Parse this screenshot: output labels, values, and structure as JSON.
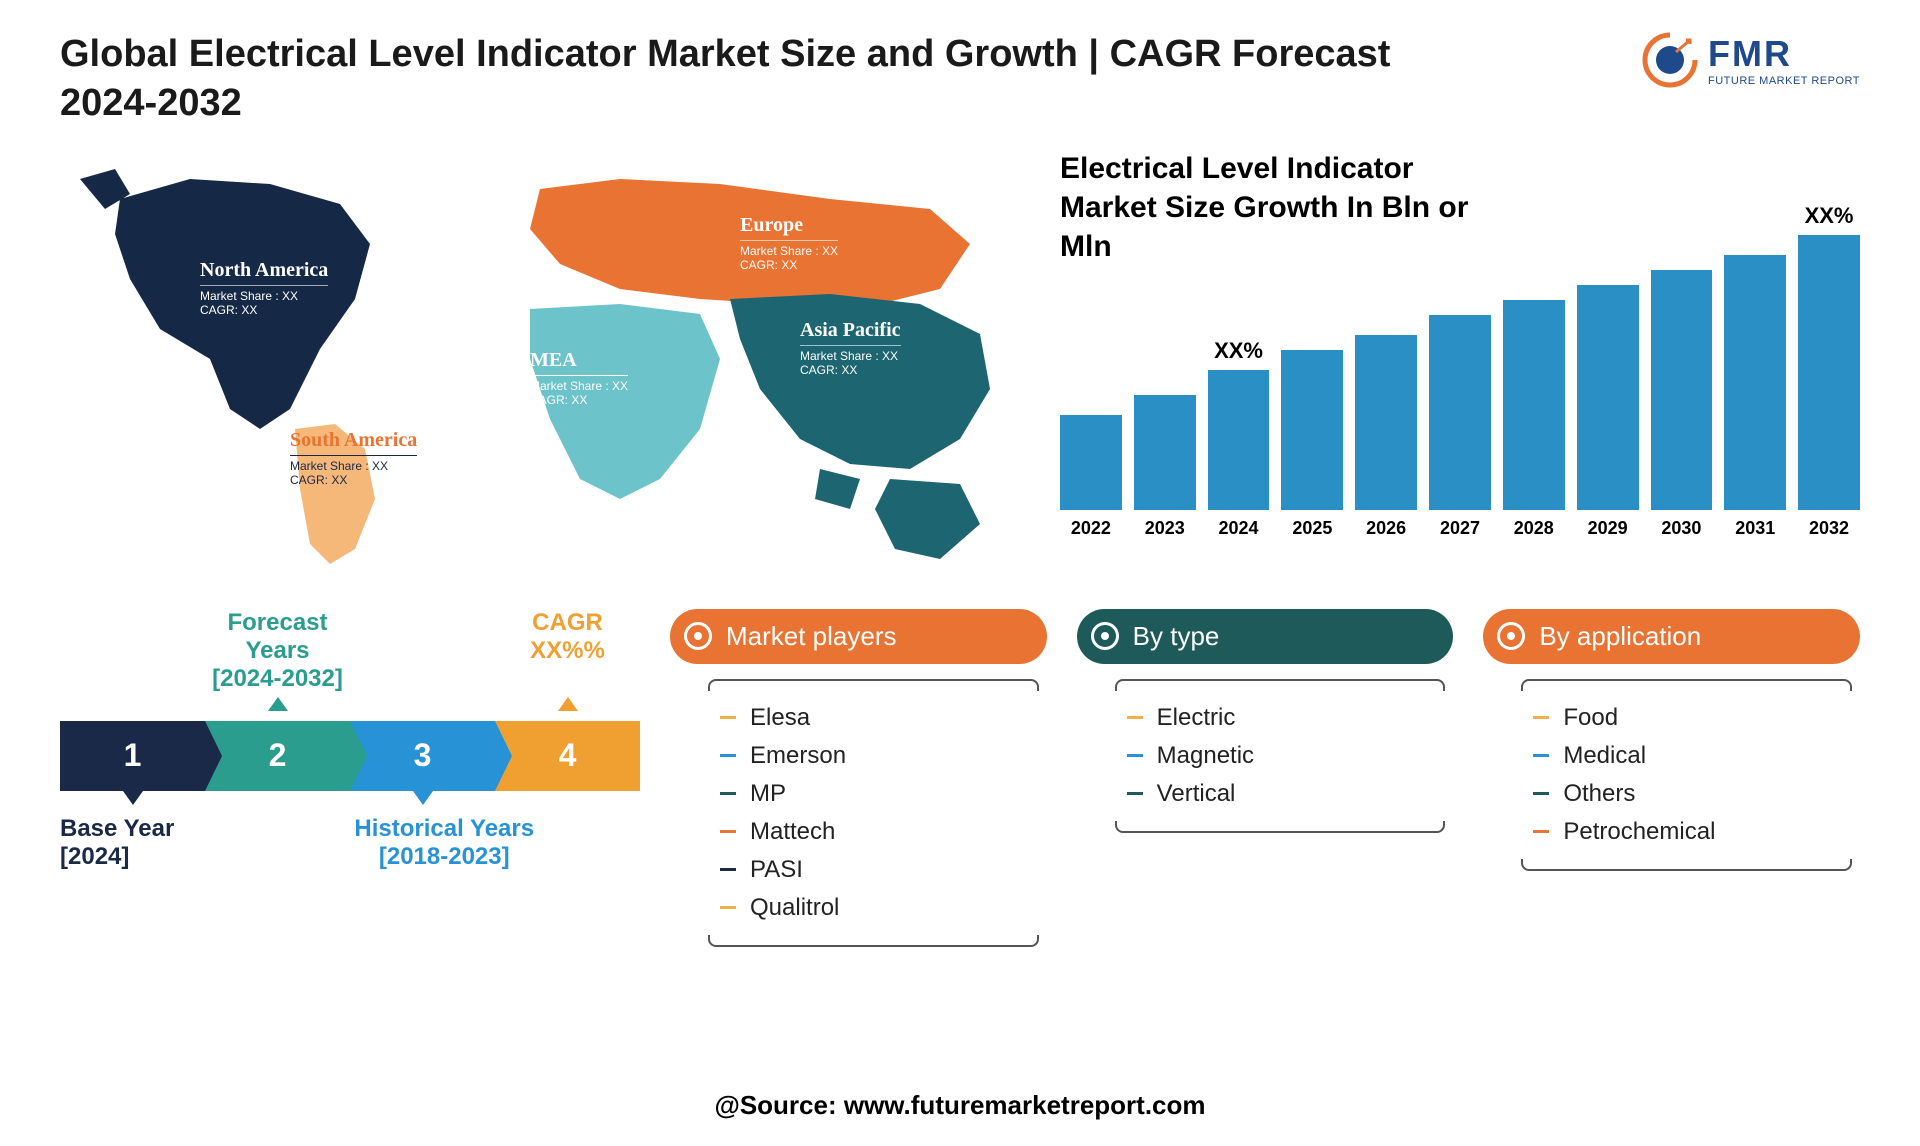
{
  "title": "Global Electrical Level Indicator Market Size and Growth | CAGR Forecast 2024-2032",
  "logo": {
    "fmr": "FMR",
    "sub": "FUTURE MARKET REPORT"
  },
  "colors": {
    "bar": "#2a8fc4",
    "navy": "#1a2947",
    "teal": "#2a9d8f",
    "blue": "#2892d7",
    "orange": "#f0a030",
    "darkteal": "#1f5a5a",
    "map_na": "#152845",
    "map_sa": "#f5b878",
    "map_eu": "#e87333",
    "map_mea": "#6cc3c9",
    "map_ap": "#1d6570",
    "logo_orange": "#e87333",
    "logo_blue": "#1e4a8c"
  },
  "regions": {
    "na": {
      "name": "North America",
      "share": "Market Share : XX",
      "cagr": "CAGR: XX"
    },
    "sa": {
      "name": "South America",
      "share": "Market Share : XX",
      "cagr": "CAGR: XX"
    },
    "eu": {
      "name": "Europe",
      "share": "Market Share : XX",
      "cagr": "CAGR: XX"
    },
    "mea": {
      "name": "MEA",
      "share": "Market Share : XX",
      "cagr": "CAGR: XX"
    },
    "ap": {
      "name": "Asia Pacific",
      "share": "Market Share : XX",
      "cagr": "CAGR: XX"
    }
  },
  "chart": {
    "title": "Electrical Level Indicator Market Size Growth In Bln or Mln",
    "years": [
      "2022",
      "2023",
      "2024",
      "2025",
      "2026",
      "2027",
      "2028",
      "2029",
      "2030",
      "2031",
      "2032"
    ],
    "values": [
      95,
      115,
      140,
      160,
      175,
      195,
      210,
      225,
      240,
      255,
      275
    ],
    "annotation_2024": "XX%",
    "annotation_2032": "XX%"
  },
  "timeline": {
    "forecast_label": "Forecast Years",
    "forecast_range": "[2024-2032]",
    "cagr_label": "CAGR",
    "cagr_value": "XX%%",
    "base_label": "Base Year",
    "base_range": "[2024]",
    "hist_label": "Historical Years",
    "hist_range": "[2018-2023]",
    "segs": [
      "1",
      "2",
      "3",
      "4"
    ]
  },
  "cards": {
    "players": {
      "title": "Market players",
      "bg": "#e87333",
      "items": [
        {
          "tick": "#f0b050",
          "label": "Elesa"
        },
        {
          "tick": "#2892d7",
          "label": "Emerson"
        },
        {
          "tick": "#1f5a5a",
          "label": "MP"
        },
        {
          "tick": "#e87333",
          "label": "Mattech"
        },
        {
          "tick": "#1a2947",
          "label": "PASI"
        },
        {
          "tick": "#f0b050",
          "label": "Qualitrol"
        }
      ]
    },
    "type": {
      "title": "By type",
      "bg": "#1f5a5a",
      "items": [
        {
          "tick": "#f0b050",
          "label": "Electric"
        },
        {
          "tick": "#2892d7",
          "label": "Magnetic"
        },
        {
          "tick": "#1f5a5a",
          "label": "Vertical"
        }
      ]
    },
    "application": {
      "title": "By application",
      "bg": "#e87333",
      "items": [
        {
          "tick": "#f0b050",
          "label": "Food"
        },
        {
          "tick": "#2892d7",
          "label": "Medical"
        },
        {
          "tick": "#1f5a5a",
          "label": "Others"
        },
        {
          "tick": "#e87333",
          "label": "Petrochemical"
        }
      ]
    }
  },
  "source": "@Source: www.futuremarketreport.com"
}
